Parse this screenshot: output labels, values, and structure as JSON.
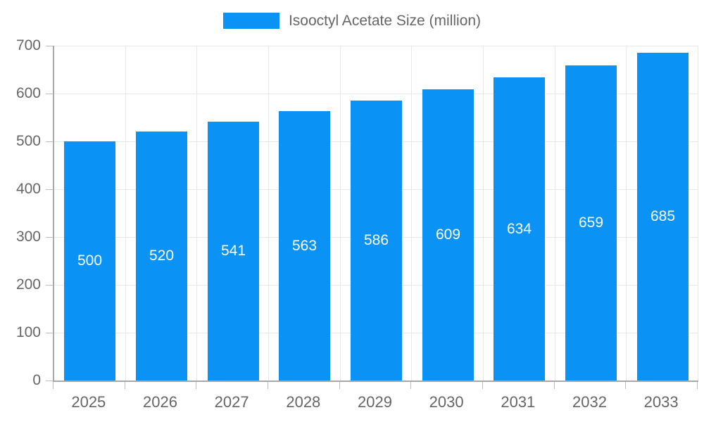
{
  "legend": {
    "label": "Isooctyl Acetate Size (million)"
  },
  "chart_data": {
    "type": "bar",
    "title": "Isooctyl Acetate Size (million)",
    "categories": [
      "2025",
      "2026",
      "2027",
      "2028",
      "2029",
      "2030",
      "2031",
      "2032",
      "2033"
    ],
    "series": [
      {
        "name": "Isooctyl Acetate Size (million)",
        "values": [
          500,
          520,
          541,
          563,
          586,
          609,
          634,
          659,
          685
        ]
      }
    ],
    "xlabel": "",
    "ylabel": "",
    "ylim": [
      0,
      700
    ],
    "ytick_step": 100,
    "ytick_labels": [
      "0",
      "100",
      "200",
      "300",
      "400",
      "500",
      "600",
      "700"
    ],
    "grid": true,
    "legend_position": "top",
    "value_labels": "centered-inside-bars",
    "colors": {
      "bar": "#0a93f5",
      "value_label_text": "#ffffff",
      "axis_text": "#666666",
      "legend_text": "#666666",
      "gridline": "#e8e8e8",
      "axis_line": "#a8a8a8",
      "tick_mark": "#bdbdbd",
      "background": "#ffffff"
    }
  }
}
